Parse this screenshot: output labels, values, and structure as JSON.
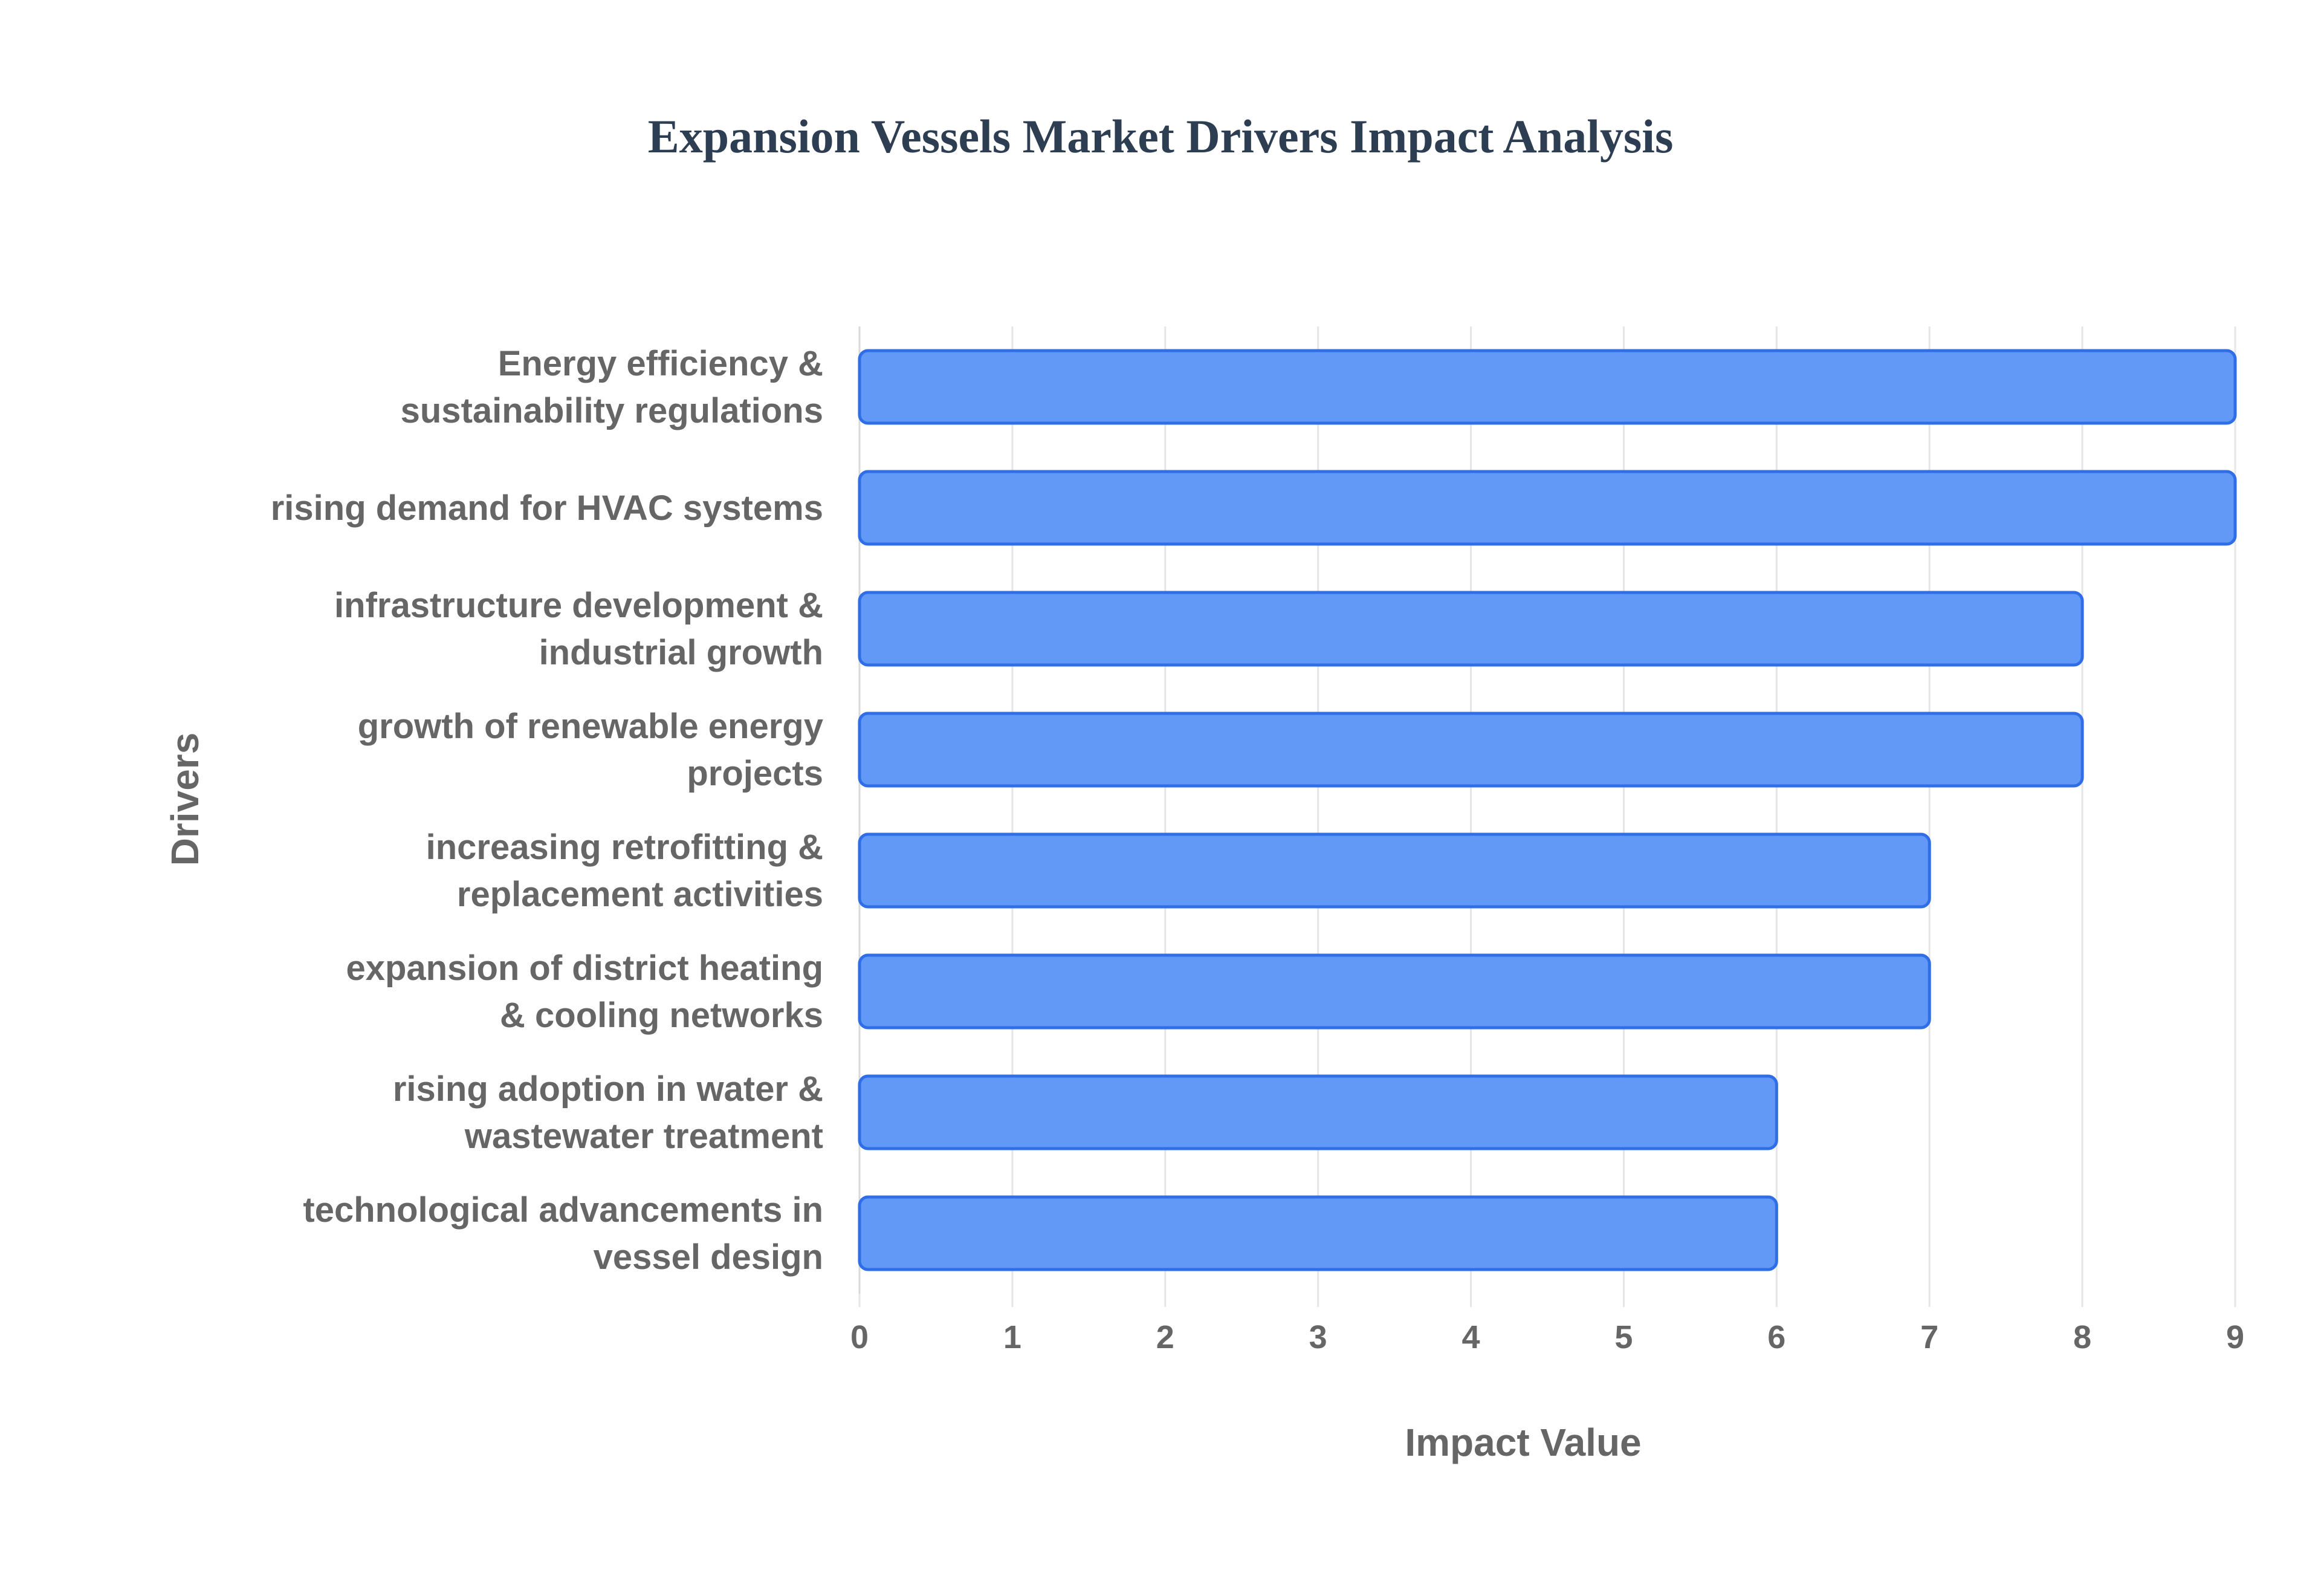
{
  "chart_data": {
    "type": "bar",
    "orientation": "horizontal",
    "title": "Expansion Vessels Market Drivers Impact Analysis",
    "xlabel": "Impact Value",
    "ylabel": "Drivers",
    "xlim": [
      0,
      9
    ],
    "x_ticks": [
      "0",
      "1",
      "2",
      "3",
      "4",
      "5",
      "6",
      "7",
      "8",
      "9"
    ],
    "grid": true,
    "categories": [
      [
        "Energy efficiency &",
        "sustainability regulations"
      ],
      [
        "rising demand for HVAC systems"
      ],
      [
        "infrastructure development &",
        "industrial growth"
      ],
      [
        "growth of renewable energy",
        "projects"
      ],
      [
        "increasing retrofitting &",
        "replacement activities"
      ],
      [
        "expansion of district heating",
        "& cooling networks"
      ],
      [
        "rising adoption in water &",
        "wastewater treatment"
      ],
      [
        "technological advancements in",
        "vessel design"
      ]
    ],
    "values": [
      9,
      9,
      8,
      8,
      7,
      7,
      6,
      6
    ],
    "colors": {
      "bar_fill": "#6399f6",
      "bar_stroke": "#2f6ee6",
      "title": "#2e3e52",
      "text": "#666666",
      "grid": "#e6e6e6"
    }
  }
}
